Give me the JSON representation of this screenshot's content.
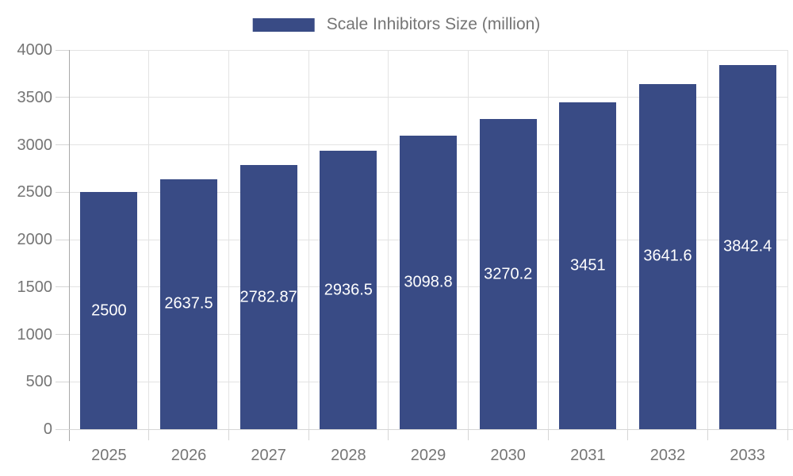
{
  "chart_data": {
    "type": "bar",
    "title": "",
    "legend": "Scale Inhibitors Size (million)",
    "legend_position": "top-center",
    "categories": [
      "2025",
      "2026",
      "2027",
      "2028",
      "2029",
      "2030",
      "2031",
      "2032",
      "2033"
    ],
    "series": [
      {
        "name": "Scale Inhibitors Size (million)",
        "values": [
          2500,
          2637.5,
          2782.87,
          2936.5,
          3098.8,
          3270.2,
          3451,
          3641.6,
          3842.4
        ]
      }
    ],
    "value_labels": [
      "2500",
      "2637.5",
      "2782.87",
      "2936.5",
      "3098.8",
      "3270.2",
      "3451",
      "3641.6",
      "3842.4"
    ],
    "xlabel": "",
    "ylabel": "",
    "ylim": [
      0,
      4000
    ],
    "yticks": [
      0,
      500,
      1000,
      1500,
      2000,
      2500,
      3000,
      3500,
      4000
    ],
    "grid": true,
    "colors": {
      "bar": "#394b85",
      "grid": "#e3e3e3",
      "axis_line": "#a9a9a9",
      "tick_line": "#d6d6d6",
      "tick_text": "#757575",
      "legend_text": "#757575",
      "value_label": "#ffffff",
      "background": "#ffffff"
    }
  }
}
